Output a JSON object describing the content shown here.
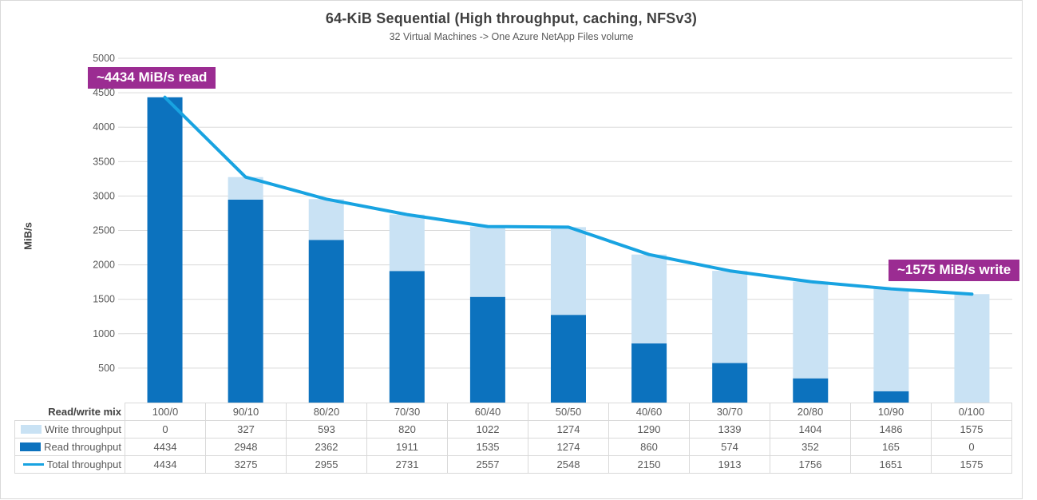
{
  "figure": {
    "title": "64-KiB Sequential (High throughput, caching, NFSv3)",
    "subtitle": "32 Virtual Machines -> One Azure NetApp Files volume"
  },
  "callouts": {
    "read": "~4434 MiB/s read",
    "write": "~1575 MiB/s write"
  },
  "colors": {
    "read_bar": "#0C72BE",
    "write_bar": "#C9E2F4",
    "total_line": "#18A3E1",
    "callout_bg": "#9B2C92",
    "gridline": "#D9D9D9",
    "axis_text": "#595959",
    "title_text": "#3F3F3F",
    "table_border": "#D9D9D9"
  },
  "chart_data": {
    "type": "bar",
    "subtype": "stacked-bars-with-total-line",
    "title": "64-KiB Sequential (High throughput, caching, NFSv3)",
    "subtitle": "32 Virtual Machines -> One Azure NetApp Files volume",
    "xlabel": "",
    "ylabel": "MiB/s",
    "ylim": [
      0,
      5000
    ],
    "yticks": [
      500,
      1000,
      1500,
      2000,
      2500,
      3000,
      3500,
      4000,
      4500,
      5000
    ],
    "grid": true,
    "legend_position": "table-left",
    "category_header": "Read/write mix",
    "categories": [
      "100/0",
      "90/10",
      "80/20",
      "70/30",
      "60/40",
      "50/50",
      "40/60",
      "30/70",
      "20/80",
      "10/90",
      "0/100"
    ],
    "series": [
      {
        "name": "Write throughput",
        "role": "write",
        "render": "bar-stack-top",
        "color_key": "write_bar",
        "values": [
          0,
          327,
          593,
          820,
          1022,
          1274,
          1290,
          1339,
          1404,
          1486,
          1575
        ]
      },
      {
        "name": "Read throughput",
        "role": "read",
        "render": "bar-stack-bottom",
        "color_key": "read_bar",
        "values": [
          4434,
          2948,
          2362,
          1911,
          1535,
          1274,
          860,
          574,
          352,
          165,
          0
        ]
      },
      {
        "name": "Total throughput",
        "role": "total",
        "render": "line",
        "color_key": "total_line",
        "values": [
          4434,
          3275,
          2955,
          2731,
          2557,
          2548,
          2150,
          1913,
          1756,
          1651,
          1575
        ]
      }
    ]
  }
}
